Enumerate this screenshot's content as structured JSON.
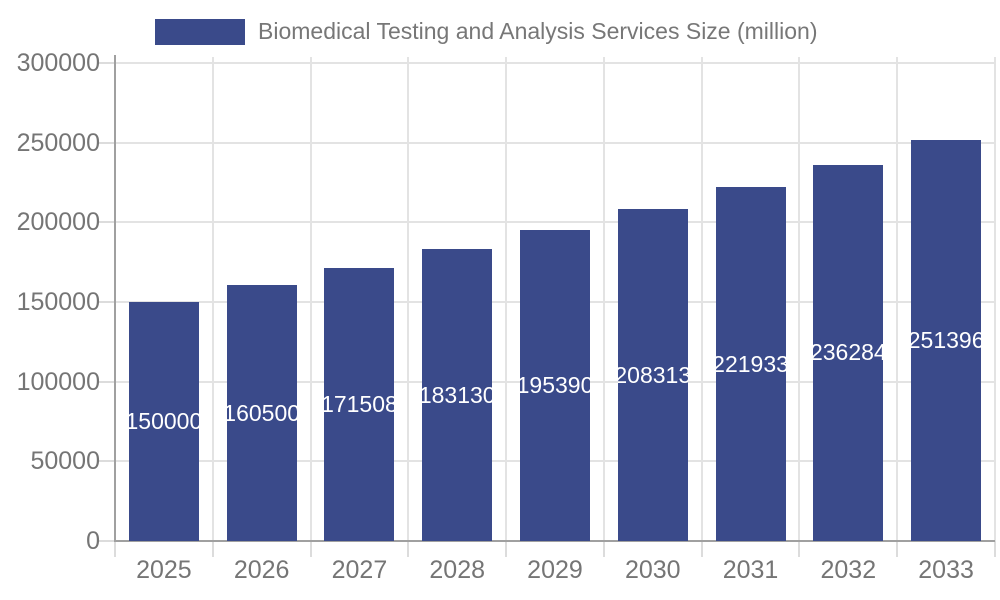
{
  "chart_data": {
    "type": "bar",
    "title": "Biomedical Testing and Analysis Services Size (million)",
    "categories": [
      "2025",
      "2026",
      "2027",
      "2028",
      "2029",
      "2030",
      "2031",
      "2032",
      "2033"
    ],
    "series": [
      {
        "name": "Biomedical Testing and Analysis Services Size (million)",
        "values": [
          150000,
          160500,
          171508,
          183130,
          195390,
          208313,
          221933,
          236284,
          251396
        ]
      }
    ],
    "values": [
      150000,
      160500,
      171508,
      183130,
      195390,
      208313,
      221933,
      236284,
      251396
    ],
    "value_labels": [
      "150000",
      "160500",
      "171508",
      "183130",
      "195390",
      "208313",
      "221933",
      "236284",
      "251396"
    ],
    "xlabel": "",
    "ylabel": "",
    "ylim": [
      0,
      300000
    ],
    "y_ticks": [
      0,
      50000,
      100000,
      150000,
      200000,
      250000,
      300000
    ],
    "y_tick_labels": [
      "0",
      "50000",
      "100000",
      "150000",
      "200000",
      "250000",
      "300000"
    ],
    "grid": true,
    "legend_position": "top",
    "bar_value_labels_inside": true
  },
  "colors": {
    "bar": "#3a4a8a",
    "bar_label": "#ffffff",
    "legend_text": "#777777",
    "tick_label": "#757575",
    "gridline": "#e3e3e3",
    "tick_mark": "#dcdcdc",
    "axis_line": "#a0a0a0",
    "background": "#ffffff"
  }
}
